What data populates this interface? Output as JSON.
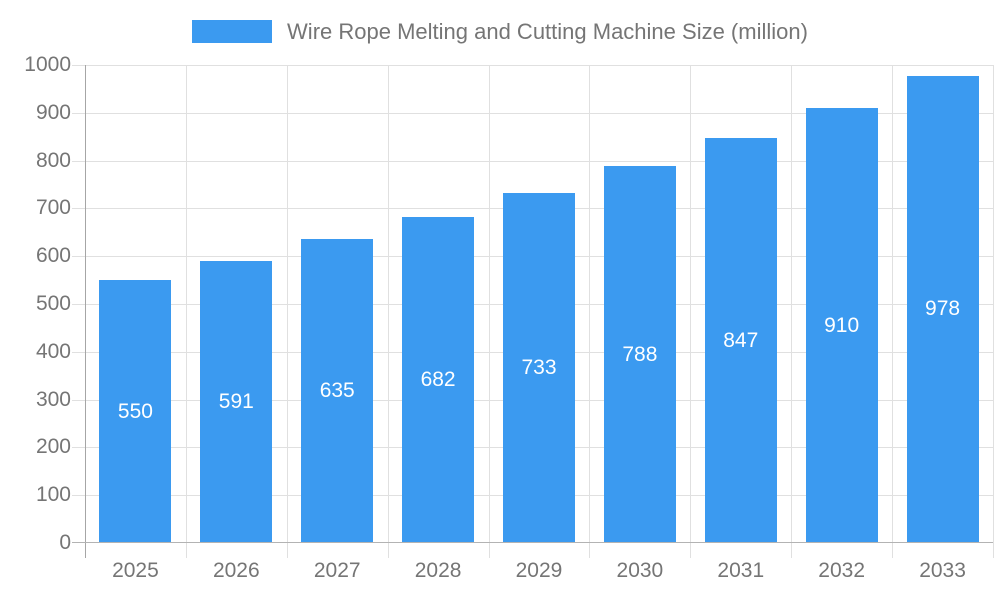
{
  "legend": {
    "title": "Wire Rope Melting and Cutting Machine Size (million)"
  },
  "chart_data": {
    "type": "bar",
    "title": "Wire Rope Melting and Cutting Machine Size (million)",
    "categories": [
      "2025",
      "2026",
      "2027",
      "2028",
      "2029",
      "2030",
      "2031",
      "2032",
      "2033"
    ],
    "values": [
      550,
      591,
      635,
      682,
      733,
      788,
      847,
      910,
      978
    ],
    "xlabel": "",
    "ylabel": "",
    "ylim": [
      0,
      1000
    ],
    "yticks": [
      0,
      100,
      200,
      300,
      400,
      500,
      600,
      700,
      800,
      900,
      1000
    ],
    "grid": true,
    "legend_position": "top",
    "colors": {
      "bar": "#3b9af0",
      "bar_label": "#ffffff",
      "axis_text": "#757575",
      "gridline": "#e0e0e0",
      "y_axis_line": "#a6a6a6",
      "x_axis_line": "#b3b3b3",
      "legend_text": "#757575"
    }
  }
}
